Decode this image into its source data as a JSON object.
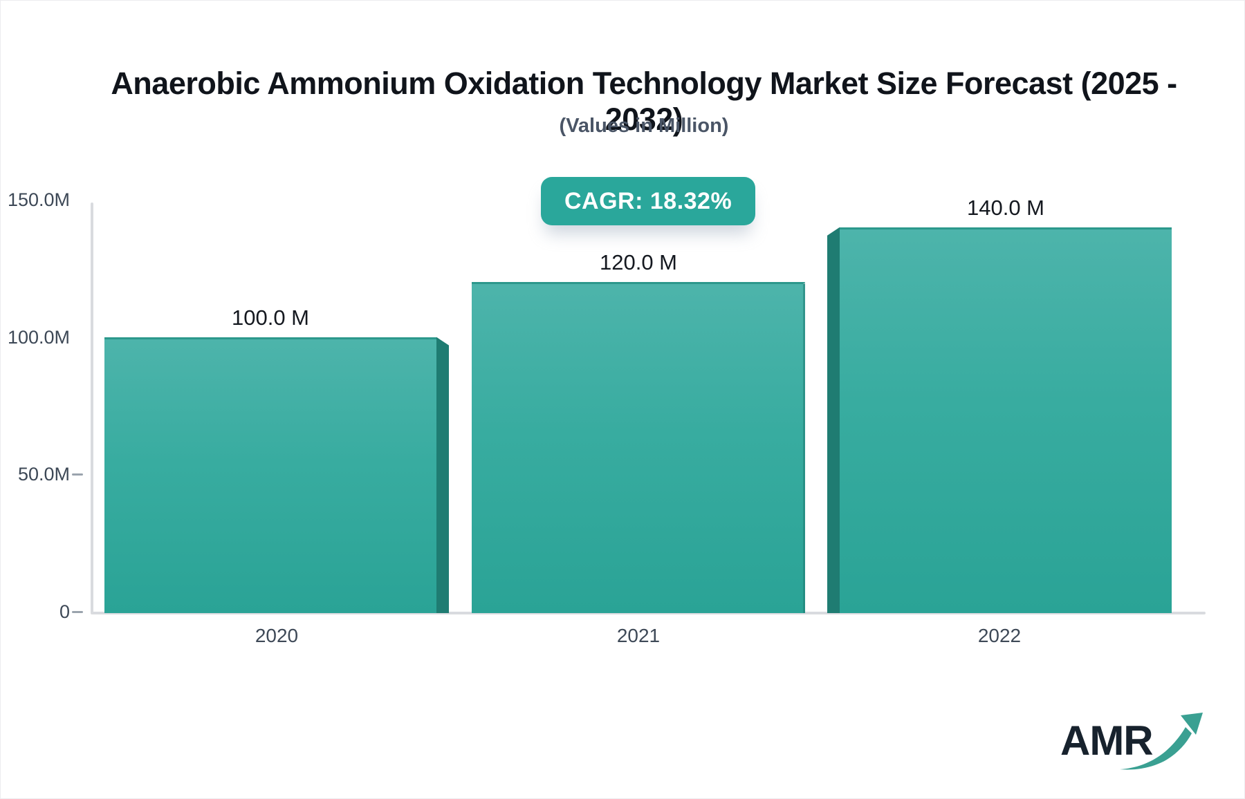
{
  "header": {
    "note": ""
  },
  "badge": {
    "label": "CAGR: 18.32%"
  },
  "logo": {
    "text": "AMR"
  },
  "colors": {
    "badge_bg": "#2aa79b",
    "bar_top": "#4db4ab",
    "bar_bottom": "#2aa396",
    "bar_side": "#1f7c72",
    "axis_line": "#d9dbdf",
    "tick_dash": "#9aa3ad",
    "title_text": "#10141b",
    "subtitle_text": "#4a5566",
    "label_text": "#14181f"
  },
  "chart_data": {
    "type": "bar",
    "title": "Anaerobic Ammonium Oxidation Technology Market Size Forecast (2025 - 2032)",
    "subtitle": "(Values in Million)",
    "categories": [
      "2020",
      "2021",
      "2022"
    ],
    "values": [
      100.0,
      120.0,
      140.0
    ],
    "value_labels": [
      "100.0 M",
      "120.0 M",
      "140.0 M"
    ],
    "unit": "Million",
    "xlabel": "",
    "ylabel": "",
    "ylim": [
      0,
      150
    ],
    "grid": false,
    "legend": "none",
    "y_axis": {
      "ticks": [
        {
          "label": "150.0M",
          "value": 150,
          "dash": false
        },
        {
          "label": "100.0M",
          "value": 100,
          "dash": false
        },
        {
          "label": "50.0M",
          "value": 50,
          "dash": true
        },
        {
          "label": "0",
          "value": 0,
          "dash": true
        }
      ]
    },
    "annotations": [
      "CAGR: 18.32%"
    ]
  }
}
